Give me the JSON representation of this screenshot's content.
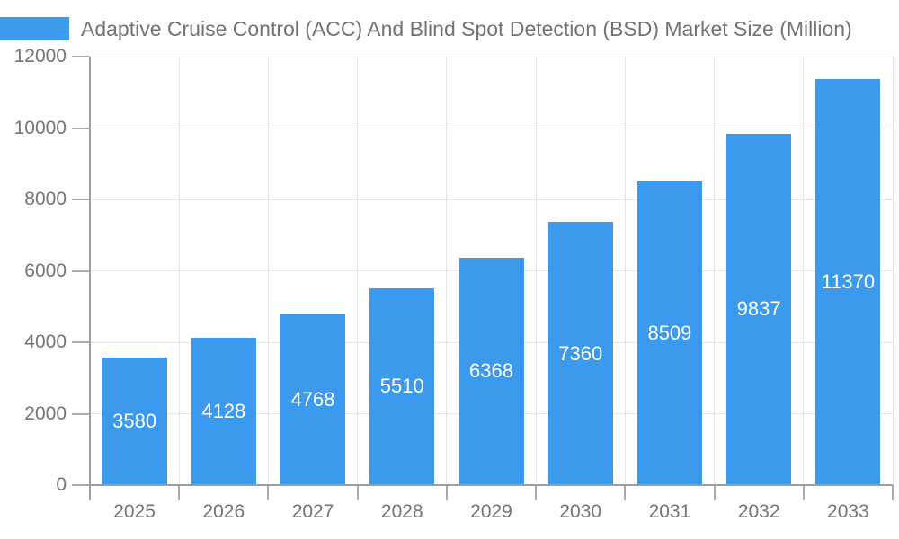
{
  "chart_data": {
    "type": "bar",
    "title": "Adaptive Cruise Control (ACC) And Blind Spot Detection (BSD) Market Size (Million)",
    "legend": {
      "position": "top-left",
      "entries": [
        "Adaptive Cruise Control (ACC) And Blind Spot Detection (BSD) Market Size (Million)"
      ]
    },
    "categories": [
      "2025",
      "2026",
      "2027",
      "2028",
      "2029",
      "2030",
      "2031",
      "2032",
      "2033"
    ],
    "values": [
      3580,
      4128,
      4768,
      5510,
      6368,
      7360,
      8509,
      9837,
      11370
    ],
    "value_labels_shown": true,
    "value_label_position": "inside-center",
    "xlabel": "",
    "ylabel": "",
    "ylim": [
      0,
      12000
    ],
    "yticks": [
      0,
      2000,
      4000,
      6000,
      8000,
      10000,
      12000
    ],
    "grid": true,
    "colors": {
      "bar": "#3b99ee",
      "grid": "#e5e5e5",
      "axis": "#9e9e9e",
      "tick": "#ababab",
      "tick_label": "#757575",
      "title": "#737373",
      "value_label": "#ffffff",
      "background": "#ffffff"
    }
  }
}
